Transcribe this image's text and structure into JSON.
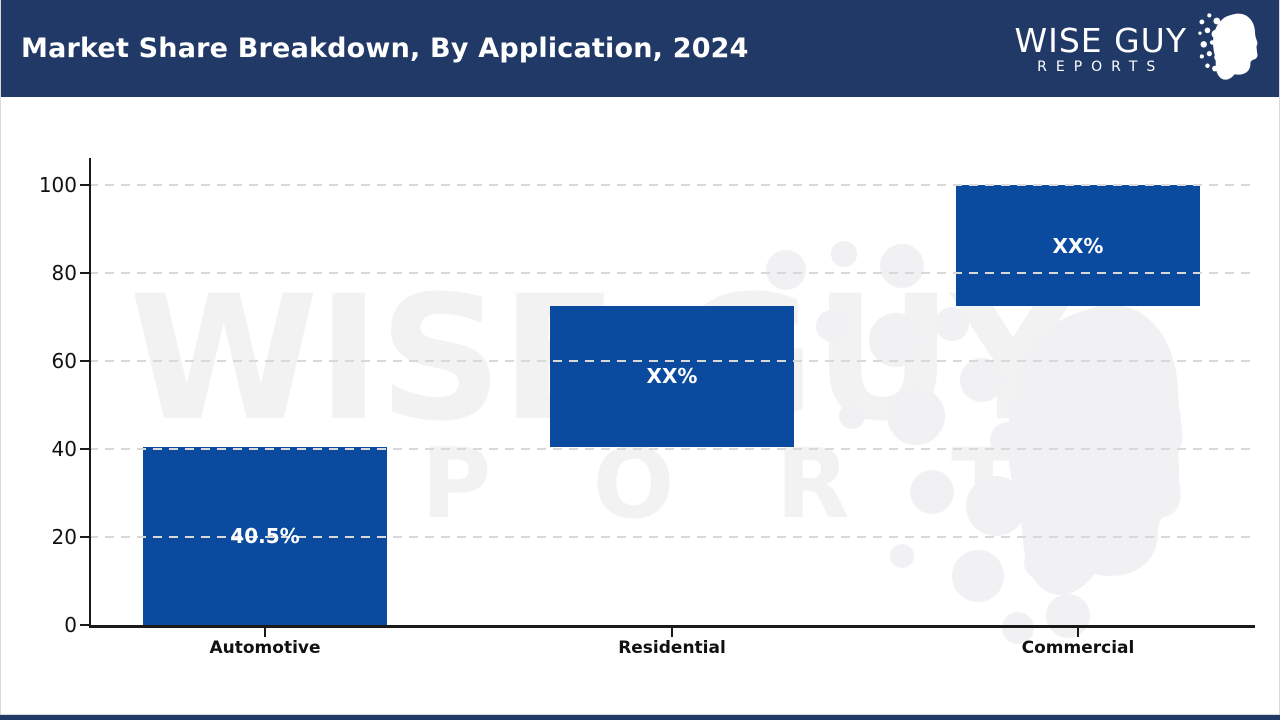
{
  "header": {
    "title": "Market Share Breakdown, By Application, 2024",
    "logo": {
      "line1": "WISE GUY",
      "line2": "REPORTS"
    }
  },
  "watermark": {
    "line1": "WISE GUY",
    "line2": "P O R T S"
  },
  "colors": {
    "header_bg": "#213966",
    "bar_blue": "#0a4a9f",
    "gridline": "#d9d9d9",
    "title_text": "#ffffff",
    "axis_text": "#111111"
  },
  "chart_data": {
    "type": "bar",
    "subtype": "floating-breakdown",
    "title": "Market Share Breakdown, By Application, 2024",
    "categories": [
      "Automotive",
      "Residential",
      "Commercial"
    ],
    "segments": [
      {
        "category": "Automotive",
        "start": 0,
        "end": 40.5,
        "label": "40.5%"
      },
      {
        "category": "Residential",
        "start": 40.5,
        "end": 72.5,
        "label": "XX%"
      },
      {
        "category": "Commercial",
        "start": 72.5,
        "end": 100,
        "label": "XX%"
      }
    ],
    "yticks": [
      0,
      20,
      40,
      60,
      80,
      100
    ],
    "ylim": [
      0,
      105
    ],
    "xlabel": "",
    "ylabel": "",
    "grid": true,
    "gridline_style": "dashed",
    "legend": "none",
    "bar_color": "#0a4a9f"
  }
}
